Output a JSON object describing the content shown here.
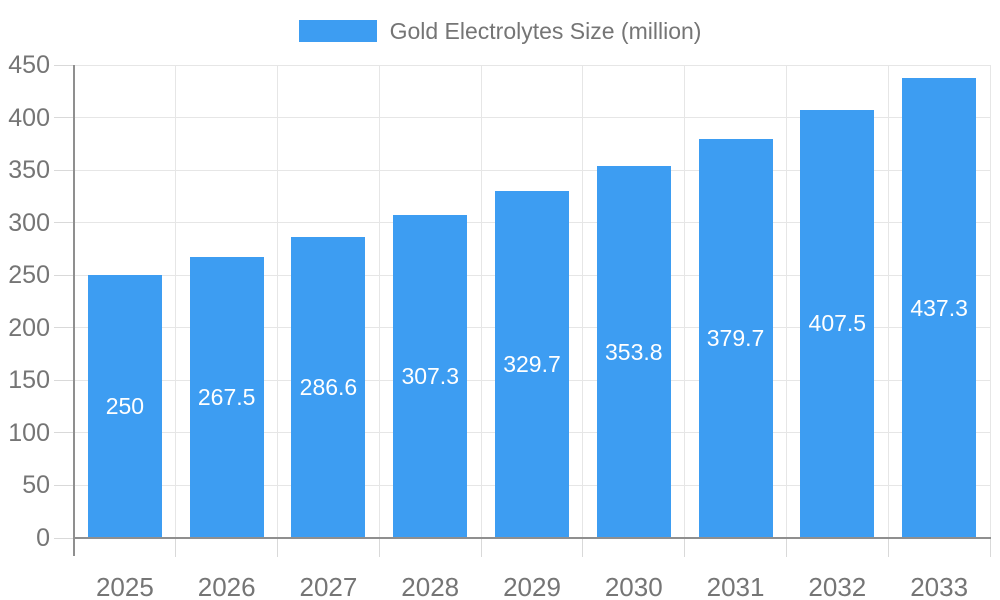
{
  "chart_data": {
    "type": "bar",
    "legend": "Gold Electrolytes Size (million)",
    "legend_position": "top-center",
    "categories": [
      "2025",
      "2026",
      "2027",
      "2028",
      "2029",
      "2030",
      "2031",
      "2032",
      "2033"
    ],
    "series": [
      {
        "name": "Gold Electrolytes Size (million)",
        "values": [
          250,
          267.5,
          286.6,
          307.3,
          329.7,
          353.8,
          379.7,
          407.5,
          437.3
        ],
        "value_labels": [
          "250",
          "267.5",
          "286.6",
          "307.3",
          "329.7",
          "353.8",
          "379.7",
          "407.5",
          "437.3"
        ]
      }
    ],
    "xlabel": "",
    "ylabel": "",
    "ylim": [
      0,
      450
    ],
    "y_tick_labels": [
      "0",
      "50",
      "100",
      "150",
      "200",
      "250",
      "300",
      "350",
      "400",
      "450"
    ],
    "grid": true,
    "colors": {
      "bar": "#3d9df2",
      "axis_line": "#8f8f8f",
      "tick_line": "#d9d9d9",
      "gridline": "#e6e6e6",
      "axis_text": "#757575",
      "value_label_text": "#ffffff",
      "background": "#ffffff"
    }
  }
}
